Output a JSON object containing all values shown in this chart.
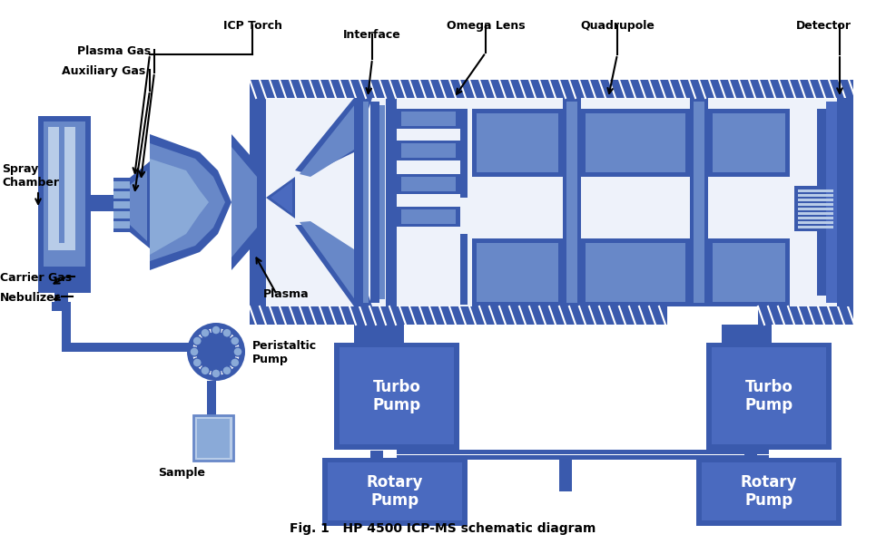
{
  "title": "Fig. 1   HP 4500 ICP-MS schematic diagram",
  "bg": "#ffffff",
  "db": "#3a5aad",
  "mb": "#4a6abf",
  "lb": "#6888c8",
  "pale": "#8aaad8",
  "vpale": "#b8cce8",
  "white": "#ffffff",
  "labels": {
    "plasma_gas": "Plasma Gas",
    "auxiliary_gas": "Auxiliary Gas",
    "carrier_gas": "Carrier Gas",
    "nebulizer": "Nebulizer",
    "spray_chamber": "Spray\nChamber",
    "icp_torch": "ICP Torch",
    "plasma": "Plasma",
    "interface": "Interface",
    "omega_lens": "Omega Lens",
    "quadrupole": "Quadrupole",
    "detector": "Detector",
    "peristaltic_pump": "Peristaltic\nPump",
    "sample": "Sample",
    "turbo_pump": "Turbo\nPump",
    "rotary_pump": "Rotary\nPump"
  }
}
